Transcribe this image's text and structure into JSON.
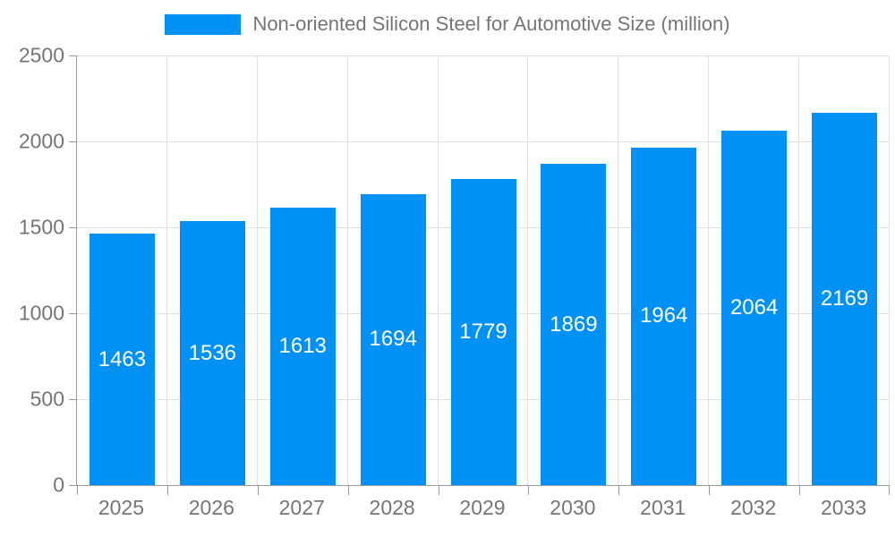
{
  "chart_data": {
    "type": "bar",
    "title": "Non-oriented Silicon Steel for Automotive Size (million)",
    "legend": "Non-oriented Silicon Steel for Automotive Size (million)",
    "legend_position": "top-center",
    "categories": [
      "2025",
      "2026",
      "2027",
      "2028",
      "2029",
      "2030",
      "2031",
      "2032",
      "2033"
    ],
    "values": [
      1463,
      1536,
      1613,
      1694,
      1779,
      1869,
      1964,
      2064,
      2169
    ],
    "xlabel": "",
    "ylabel": "",
    "ylim": [
      0,
      2500
    ],
    "yticks": [
      0,
      500,
      1000,
      1500,
      2000,
      2500
    ],
    "grid": true,
    "value_labels": "inside-center",
    "colors": {
      "bar": "#0091f7",
      "grid": "#e0e0e0",
      "axis": "#999999",
      "tick_label": "#757575",
      "value_label": "#ffffff",
      "background": "#ffffff"
    }
  }
}
